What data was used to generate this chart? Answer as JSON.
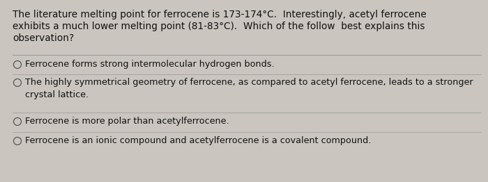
{
  "background_color": "#cac6bf",
  "question_text_lines": [
    "The literature melting point for ferrocene is 173-174°C.  Interestingly, acetyl ferrocene",
    "exhibits a much lower melting point (81-83°C).  Which of the follow  best explains this",
    "observation?"
  ],
  "options": [
    "Ferrocene forms strong intermolecular hydrogen bonds.",
    "The highly symmetrical geometry of ferrocene, as compared to acetyl ferrocene, leads to a stronger\ncrystal lattice.",
    "Ferrocene is more polar than acetylferrocene.",
    "Ferrocene is an ionic compound and acetylferrocene is a covalent compound."
  ],
  "divider_color": "#999999",
  "text_color": "#111111",
  "circle_color": "#555555",
  "font_size_question": 9.8,
  "font_size_options": 9.2
}
